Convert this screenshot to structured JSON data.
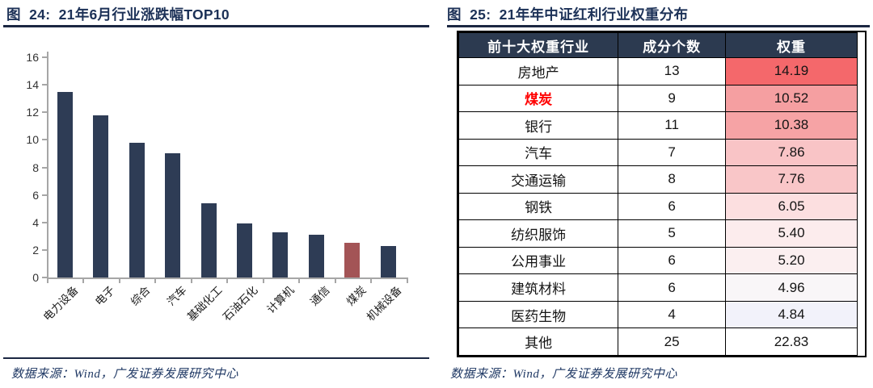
{
  "left_figure": {
    "title": "图  24:  21年6月行业涨跌幅TOP10",
    "source": "数据来源：Wind，广发证券发展研究中心"
  },
  "right_figure": {
    "title": "图  25:  21年年中证红利行业权重分布",
    "source": "数据来源：Wind，广发证券发展研究中心"
  },
  "chart_data": [
    {
      "type": "bar",
      "title": "图 24: 21年6月行业涨跌幅TOP10",
      "categories": [
        "电力设备",
        "电子",
        "综合",
        "汽车",
        "基础化工",
        "石油石化",
        "计算机",
        "通信",
        "煤炭",
        "机械设备"
      ],
      "values": [
        13.5,
        11.8,
        9.8,
        9.0,
        5.4,
        3.9,
        3.3,
        3.1,
        2.5,
        2.3
      ],
      "xlabel": "",
      "ylabel": "",
      "ylim": [
        0,
        16
      ],
      "ytick_step": 2,
      "grid": false,
      "legend": "none",
      "bar_color": "#2e3c55",
      "highlight_index": 8,
      "highlight_color": "#a35456",
      "highlight_category": "煤炭"
    },
    {
      "type": "table",
      "title": "图 25: 21年年中证红利行业权重分布",
      "columns": [
        "前十大权重行业",
        "成分个数",
        "权重"
      ],
      "rows": [
        [
          "房地产",
          "13",
          "14.19"
        ],
        [
          "煤炭",
          "9",
          "10.52"
        ],
        [
          "银行",
          "11",
          "10.38"
        ],
        [
          "汽车",
          "7",
          "7.86"
        ],
        [
          "交通运输",
          "8",
          "7.76"
        ],
        [
          "钢铁",
          "6",
          "6.05"
        ],
        [
          "纺织服饰",
          "5",
          "5.40"
        ],
        [
          "公用事业",
          "6",
          "5.20"
        ],
        [
          "建筑材料",
          "6",
          "4.96"
        ],
        [
          "医药生物",
          "4",
          "4.84"
        ],
        [
          "其他",
          "25",
          "22.83"
        ]
      ],
      "weight_cell_colors": [
        "#f4686b",
        "#f59fa1",
        "#f6a3a5",
        "#f9c4c6",
        "#f9c6c8",
        "#fcdfe0",
        "#fceced",
        "#fbeff0",
        "#f9f6f8",
        "#f2f2fa",
        "#ffffff"
      ],
      "highlight_row": 1,
      "highlight_text_color": "#ff0000",
      "header_bg": "#2c3a50",
      "header_text_color": "#ffffff"
    }
  ],
  "colors": {
    "bar_navy": "#2e3c55",
    "bar_highlight_red": "#a35456",
    "title_navy": "#1c3157",
    "rule_navy": "#1b2742",
    "source_navy": "#1f3864",
    "axis_gray": "#a6a6a6",
    "table_border": "#000000"
  }
}
